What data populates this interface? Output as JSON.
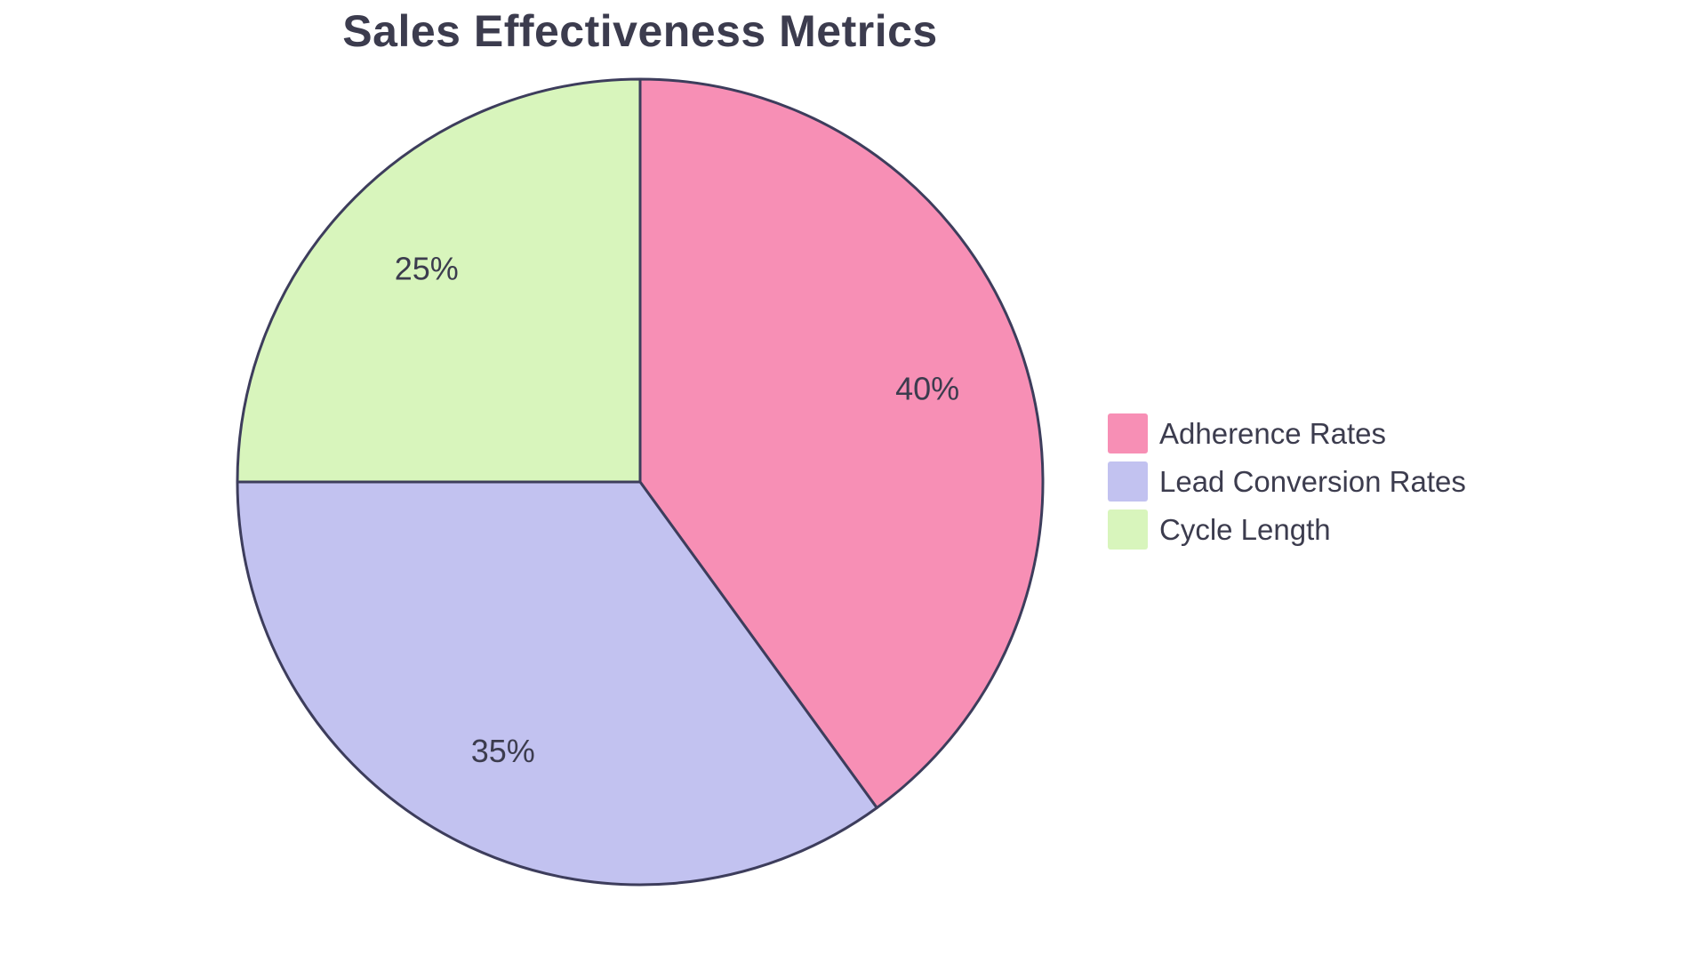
{
  "title": "Sales Effectiveness Metrics",
  "chart_data": {
    "type": "pie",
    "title": "Sales Effectiveness Metrics",
    "labels": [
      "Adherence Rates",
      "Lead Conversion Rates",
      "Cycle Length"
    ],
    "values": [
      40,
      35,
      25
    ],
    "percent_labels": [
      "40%",
      "35%",
      "25%"
    ],
    "colors": [
      "#F78FB5",
      "#C2C2F0",
      "#D8F5BC"
    ],
    "edge_color": "#3D3D5C",
    "start_angle_deg": 0,
    "direction": "clockwise",
    "label_distance": 0.75,
    "legend_position": "right",
    "background": "#FFFFFF"
  },
  "legend": {
    "items": [
      {
        "label": "Adherence Rates",
        "color": "#F78FB5"
      },
      {
        "label": "Lead Conversion Rates",
        "color": "#C2C2F0"
      },
      {
        "label": "Cycle Length",
        "color": "#D8F5BC"
      }
    ]
  }
}
